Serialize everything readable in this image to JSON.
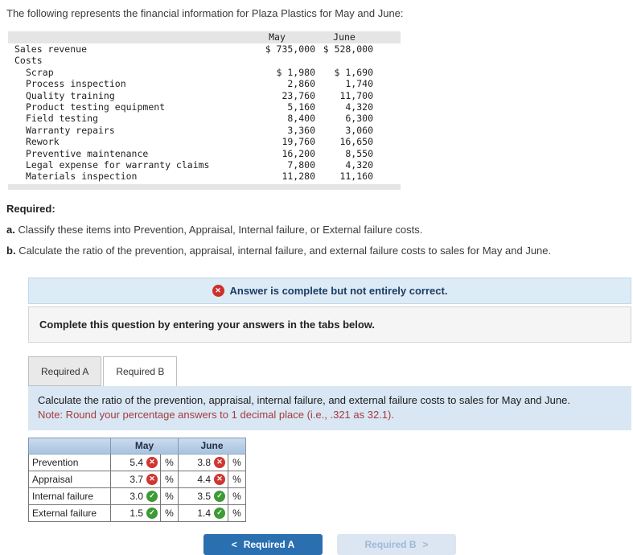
{
  "intro_text": "The following represents the financial information for Plaza Plastics for May and June:",
  "icons": {
    "error": "✕",
    "chevron_left": "<",
    "chevron_right": ">"
  },
  "colors": {
    "accent_blue": "#2a6fb0",
    "correct_green": "#3d9b35",
    "incorrect_red": "#cf3732",
    "panel_blue": "#d9e7f4",
    "note_red": "#a33c3c"
  },
  "financial_table": {
    "col_may": "May",
    "col_june": "June",
    "rows": [
      {
        "label": "Sales revenue",
        "indent": "0",
        "may": "$ 735,000",
        "june": "$ 528,000"
      },
      {
        "label": "Costs",
        "indent": "0",
        "may": "",
        "june": ""
      },
      {
        "label": "Scrap",
        "indent": "1",
        "may": "$ 1,980",
        "june": "$ 1,690"
      },
      {
        "label": "Process inspection",
        "indent": "1",
        "may": "2,860",
        "june": "1,740"
      },
      {
        "label": "Quality training",
        "indent": "1",
        "may": "23,760",
        "june": "11,700"
      },
      {
        "label": "Product testing equipment",
        "indent": "1",
        "may": "5,160",
        "june": "4,320"
      },
      {
        "label": "Field testing",
        "indent": "1",
        "may": "8,400",
        "june": "6,300"
      },
      {
        "label": "Warranty repairs",
        "indent": "1",
        "may": "3,360",
        "june": "3,060"
      },
      {
        "label": "Rework",
        "indent": "1",
        "may": "19,760",
        "june": "16,650"
      },
      {
        "label": "Preventive maintenance",
        "indent": "1",
        "may": "16,200",
        "june": "8,550"
      },
      {
        "label": "Legal expense for warranty claims",
        "indent": "1",
        "may": "7,800",
        "june": "4,320"
      },
      {
        "label": "Materials inspection",
        "indent": "1",
        "may": "11,280",
        "june": "11,160"
      }
    ]
  },
  "required_section": {
    "heading": "Required:",
    "items": [
      {
        "prefix": "a.",
        "text": "Classify these items into Prevention, Appraisal, Internal failure, or External failure costs."
      },
      {
        "prefix": "b.",
        "text": "Calculate the ratio of the prevention, appraisal, internal failure, and external failure costs to sales for May and June."
      }
    ]
  },
  "alert": {
    "text": "Answer is complete but not entirely correct."
  },
  "instruction_bar": {
    "text": "Complete this question by entering your answers in the tabs below."
  },
  "tabs": [
    {
      "label": "Required A",
      "active": false
    },
    {
      "label": "Required B",
      "active": true
    }
  ],
  "tab_panel": {
    "instruction": "Calculate the ratio of the prevention, appraisal, internal failure, and external failure costs to sales for May and June.",
    "note": "Note: Round your percentage answers to 1 decimal place (i.e., .321 as 32.1)."
  },
  "answer_table": {
    "col_may": "May",
    "col_june": "June",
    "percent": "%",
    "rows": [
      {
        "label": "Prevention",
        "may_value": "5.4",
        "may_status": "incorrect",
        "june_value": "3.8",
        "june_status": "incorrect"
      },
      {
        "label": "Appraisal",
        "may_value": "3.7",
        "may_status": "incorrect",
        "june_value": "4.4",
        "june_status": "incorrect"
      },
      {
        "label": "Internal failure",
        "may_value": "3.0",
        "may_status": "correct",
        "june_value": "3.5",
        "june_status": "correct"
      },
      {
        "label": "External failure",
        "may_value": "1.5",
        "may_status": "correct",
        "june_value": "1.4",
        "june_status": "correct"
      }
    ]
  },
  "nav_buttons": {
    "prev_label": "Required A",
    "next_label": "Required B"
  }
}
